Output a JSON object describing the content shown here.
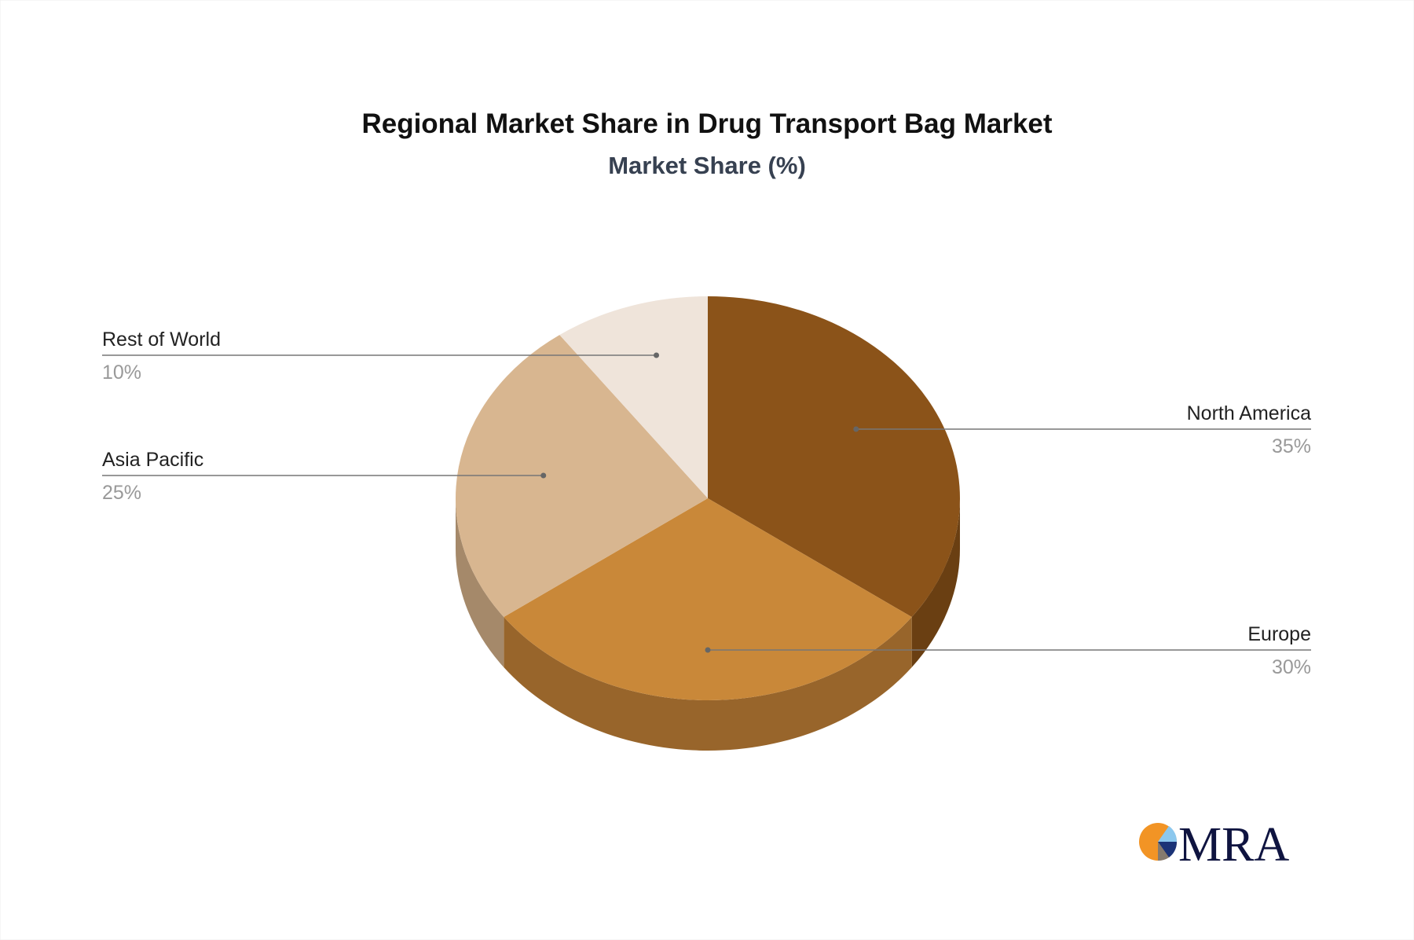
{
  "chart_data": {
    "type": "pie",
    "style": "3d",
    "title": "Regional Market Share in Drug Transport Bag Market",
    "subtitle": "Market Share (%)",
    "slices": [
      {
        "label": "North America",
        "value": 35,
        "pct_label": "35%",
        "color": "#8B5319",
        "side_color": "#6A3F12"
      },
      {
        "label": "Europe",
        "value": 30,
        "pct_label": "30%",
        "color": "#C98839",
        "side_color": "#98652B"
      },
      {
        "label": "Asia Pacific",
        "value": 25,
        "pct_label": "25%",
        "color": "#D8B690",
        "side_color": "#A5896A"
      },
      {
        "label": "Rest of World",
        "value": 10,
        "pct_label": "10%",
        "color": "#EFE4DA",
        "side_color": "#C8BCB0"
      }
    ]
  },
  "logo": {
    "text": "MRA"
  }
}
